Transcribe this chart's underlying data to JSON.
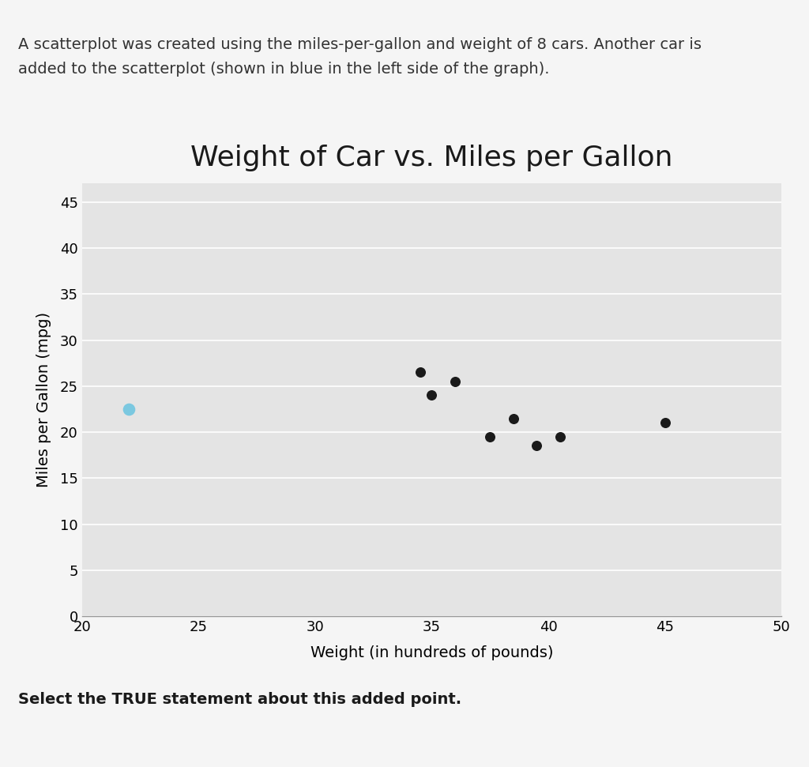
{
  "title": "Weight of Car vs. Miles per Gallon",
  "xlabel": "Weight (in hundreds of pounds)",
  "ylabel": "Miles per Gallon (mpg)",
  "text_above": "A scatterplot was created using the miles-per-gallon and weight of 8 cars. Another car is\nadded to the scatterplot (shown in blue in the left side of the graph).",
  "text_below": "Select the TRUE statement about this added point.",
  "black_points": [
    [
      34.5,
      26.5
    ],
    [
      35.0,
      24.0
    ],
    [
      36.0,
      25.5
    ],
    [
      37.5,
      19.5
    ],
    [
      38.5,
      21.5
    ],
    [
      39.5,
      18.5
    ],
    [
      40.5,
      19.5
    ],
    [
      45.0,
      21.0
    ]
  ],
  "blue_point": [
    22.0,
    22.5
  ],
  "black_color": "#1a1a1a",
  "blue_color": "#7bc8e0",
  "bg_color": "#e4e4e4",
  "outer_bg": "#f5f5f5",
  "xlim": [
    20,
    50
  ],
  "ylim": [
    0,
    47
  ],
  "xticks": [
    20,
    25,
    30,
    35,
    40,
    45,
    50
  ],
  "yticks": [
    0,
    5,
    10,
    15,
    20,
    25,
    30,
    35,
    40,
    45
  ],
  "marker_size": 70,
  "title_fontsize": 26,
  "label_fontsize": 14,
  "tick_fontsize": 13,
  "above_text_fontsize": 14,
  "below_text_fontsize": 14
}
